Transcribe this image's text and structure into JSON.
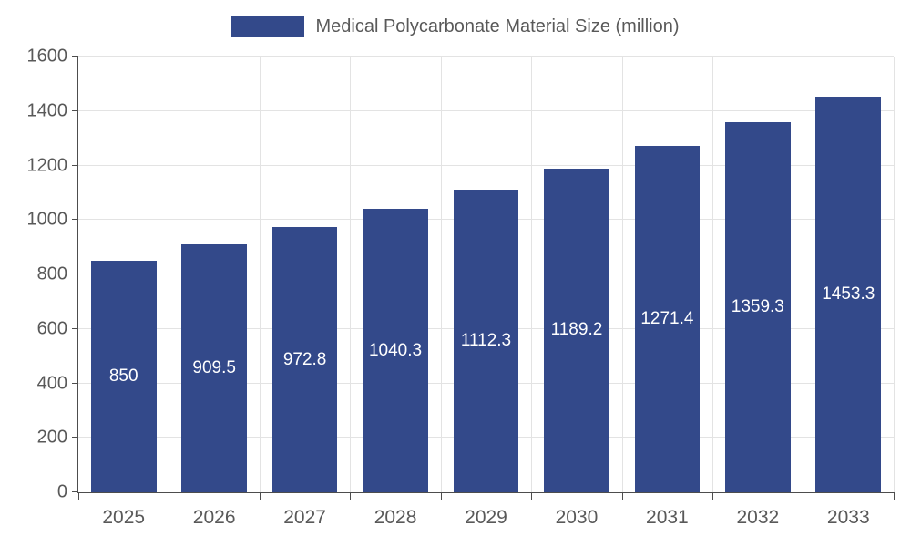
{
  "chart_data": {
    "type": "bar",
    "title": "Medical Polycarbonate Material Size (million)",
    "categories": [
      "2025",
      "2026",
      "2027",
      "2028",
      "2029",
      "2030",
      "2031",
      "2032",
      "2033"
    ],
    "values": [
      850,
      909.5,
      972.8,
      1040.3,
      1112.3,
      1189.2,
      1271.4,
      1359.3,
      1453.3
    ],
    "bar_labels": [
      "850",
      "909.5",
      "972.8",
      "1040.3",
      "1112.3",
      "1189.2",
      "1271.4",
      "1359.3",
      "1453.3"
    ],
    "yticks": [
      "0",
      "200",
      "400",
      "600",
      "800",
      "1000",
      "1200",
      "1400",
      "1600"
    ],
    "ylim": [
      0,
      1600
    ],
    "ytick_interval": 200,
    "xlabel": "",
    "ylabel": "",
    "grid": true,
    "legend_position": "top",
    "colors": {
      "bar": "#33498a",
      "bar_label_text": "#ffffff",
      "axis_text": "#595959",
      "grid_line": "#e3e3e3",
      "axis_line": "#4d4d4d"
    }
  }
}
